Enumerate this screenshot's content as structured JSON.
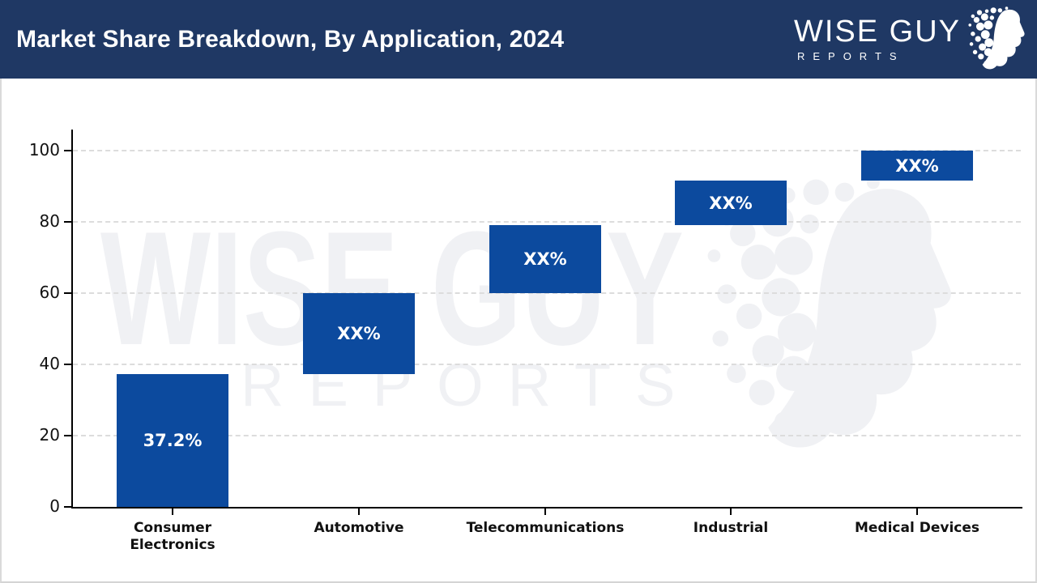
{
  "header": {
    "title": "Market Share Breakdown, By Application, 2024",
    "bg_color": "#1F3864",
    "logo": {
      "wordmark": "WISE GUY",
      "subtext": "REPORTS"
    }
  },
  "watermark": {
    "wordmark": "WISE GUY",
    "subtext": "REPORTS"
  },
  "chart_data": {
    "type": "bar",
    "subtype": "waterfall",
    "title": "Market Share Breakdown, By Application, 2024",
    "categories": [
      "Consumer Electronics",
      "Automotive",
      "Telecommunications",
      "Industrial",
      "Medical Devices"
    ],
    "x_display": [
      "Consumer\nElectronics",
      "Automotive",
      "Telecommunications",
      "Industrial",
      "Medical Devices"
    ],
    "segments": [
      {
        "category": "Consumer Electronics",
        "start": 0,
        "end": 37.2,
        "value_label": "37.2%"
      },
      {
        "category": "Automotive",
        "start": 37.2,
        "end": 60,
        "value_label": "XX%"
      },
      {
        "category": "Telecommunications",
        "start": 60,
        "end": 79,
        "value_label": "XX%"
      },
      {
        "category": "Industrial",
        "start": 79,
        "end": 91.5,
        "value_label": "XX%"
      },
      {
        "category": "Medical Devices",
        "start": 91.5,
        "end": 100,
        "value_label": "XX%"
      }
    ],
    "yticks": [
      0,
      20,
      40,
      60,
      80,
      100
    ],
    "ylim": [
      0,
      106
    ],
    "grid": "horizontal-dashed",
    "legend": null,
    "bar_color": "#0C4A9E",
    "bar_label_color": "#FFFFFF",
    "axis_color": "#000000",
    "gridline_color": "#DCDCDC"
  }
}
